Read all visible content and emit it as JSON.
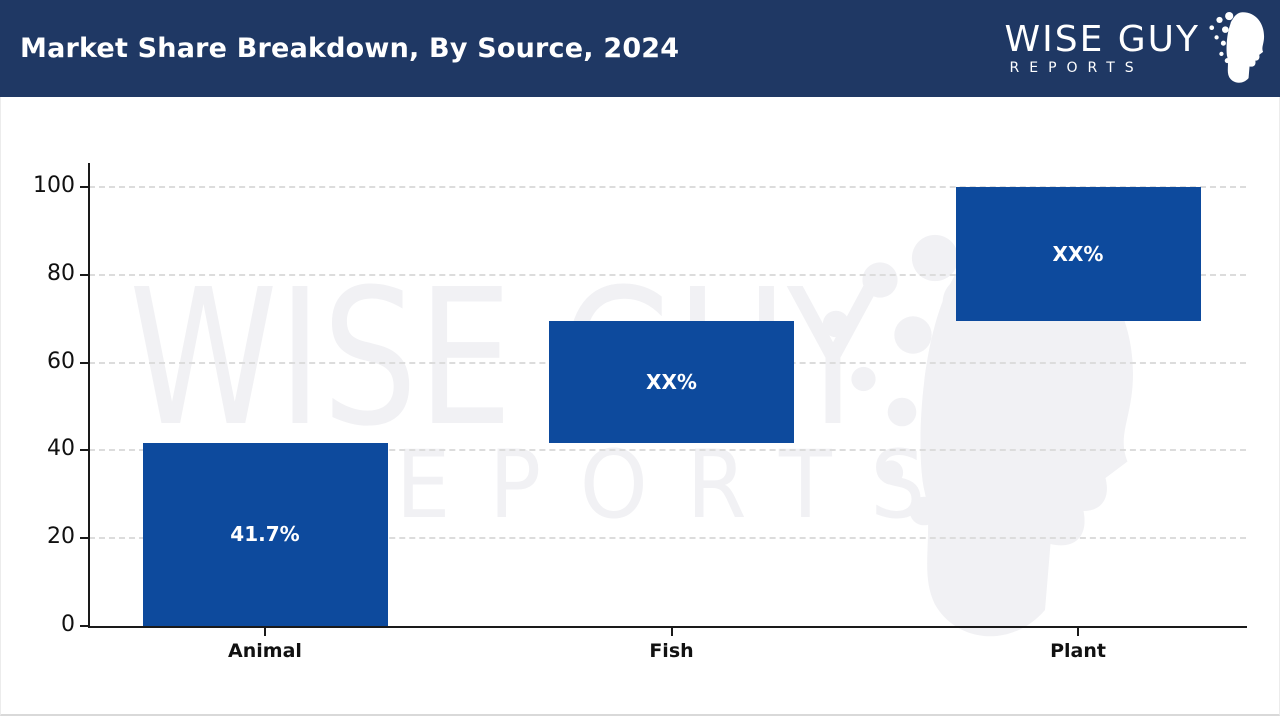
{
  "header": {
    "title": "Market Share Breakdown, By Source, 2024",
    "logo": {
      "line1": "WISE GUY",
      "line2": "REPORTS"
    }
  },
  "watermark": {
    "line1": "WISE GUY",
    "line2": "REPORTS"
  },
  "colors": {
    "header_bg": "#1F3864",
    "bar": "#0D4A9D",
    "bar_label": "#FFFFFF",
    "grid": "#DCDCDC",
    "axis": "#1A1A1A",
    "watermark": "#F1F1F4",
    "title_text": "#FFFFFF"
  },
  "chart_data": {
    "type": "bar",
    "subtype": "waterfall",
    "title": "Market Share Breakdown, By Source, 2024",
    "xlabel": "",
    "ylabel": "",
    "categories": [
      "Animal",
      "Fish",
      "Plant"
    ],
    "segments": [
      {
        "category": "Animal",
        "start": 0,
        "end": 41.7,
        "label": "41.7%"
      },
      {
        "category": "Fish",
        "start": 41.7,
        "end": 69.5,
        "label": "XX%"
      },
      {
        "category": "Plant",
        "start": 69.5,
        "end": 100,
        "label": "XX%"
      }
    ],
    "ylim": [
      0,
      105
    ],
    "yticks": [
      0,
      20,
      40,
      60,
      80,
      100
    ],
    "grid": "horizontal-dashed",
    "legend": "none"
  }
}
